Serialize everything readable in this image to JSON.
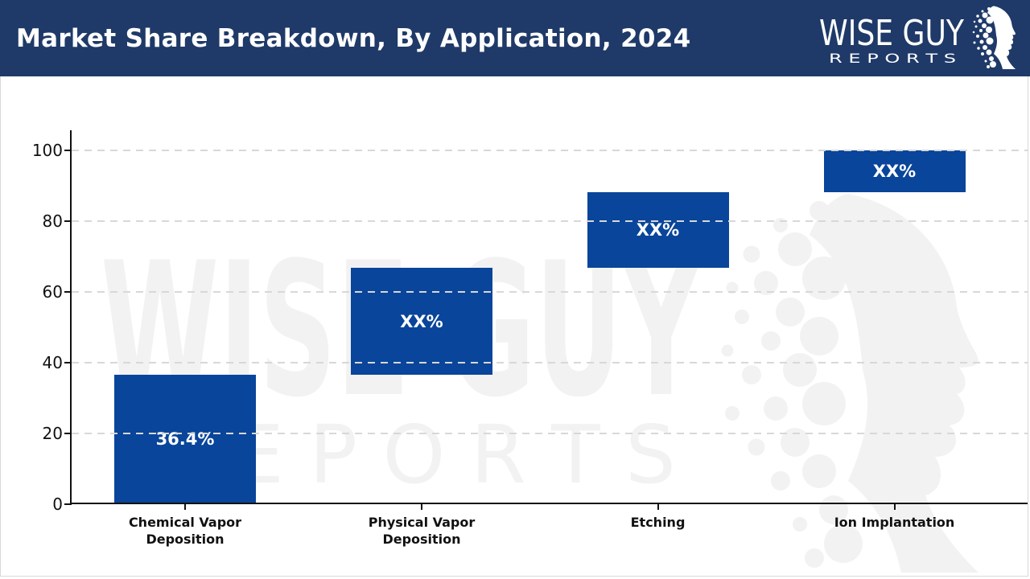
{
  "header": {
    "title": "Market Share Breakdown, By Application, 2024",
    "logo": {
      "name": "WISE GUY",
      "tagline": "R E P O R T S"
    }
  },
  "watermark": {
    "name": "WISE GUY",
    "tagline": "R E P O R T S"
  },
  "colors": {
    "header_bg": "#1f3a68",
    "bar": "#09459a",
    "bar_label": "#ffffff",
    "grid": "#d8d8d8",
    "axis": "#111111",
    "watermark": "#f2f2f2",
    "card_border": "#d9d9d9"
  },
  "chart_data": {
    "type": "bar",
    "subtype": "waterfall",
    "title": "Market Share Breakdown, By Application, 2024",
    "categories": [
      "Chemical Vapor Deposition",
      "Physical Vapor Deposition",
      "Etching",
      "Ion Implantation"
    ],
    "series": [
      {
        "name": "Market share (%)",
        "segments": [
          {
            "category": "Chemical Vapor Deposition",
            "start": 0,
            "end": 36.4,
            "label": "36.4%"
          },
          {
            "category": "Physical Vapor Deposition",
            "start": 36.4,
            "end": 66.6,
            "label": "XX%"
          },
          {
            "category": "Etching",
            "start": 66.6,
            "end": 88.0,
            "label": "XX%"
          },
          {
            "category": "Ion Implantation",
            "start": 88.0,
            "end": 99.8,
            "label": "XX%"
          }
        ]
      }
    ],
    "ylim": [
      0,
      105
    ],
    "yticks": [
      0,
      20,
      40,
      60,
      80,
      100
    ],
    "grid": "horizontal-dashed",
    "legend": "none"
  }
}
